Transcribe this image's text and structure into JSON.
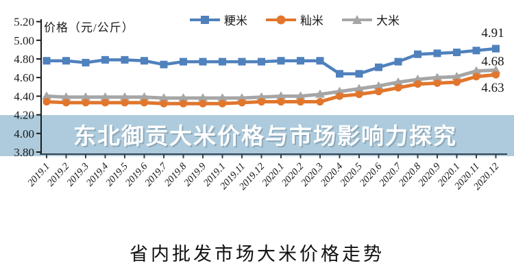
{
  "banner": {
    "title": "东北御贡大米价格与市场影响力探究",
    "bg_color": "#adcbdc",
    "text_color": "#ffffff"
  },
  "footer": {
    "title": "省内批发市场大米价格走势"
  },
  "axis_title": "价格（元/公斤）",
  "legend": [
    {
      "label": "粳米",
      "color": "#4f81bd",
      "marker": "square"
    },
    {
      "label": "籼米",
      "color": "#e1762c",
      "marker": "circle"
    },
    {
      "label": "大米",
      "color": "#a6a6a6",
      "marker": "triangle"
    }
  ],
  "chart_data": {
    "type": "line",
    "title": "省内批发市场大米价格走势",
    "ylabel": "价格（元/公斤）",
    "ylim": [
      3.8,
      5.2
    ],
    "y_ticks": [
      "5.20",
      "5.00",
      "4.80",
      "4.60",
      "4.40",
      "4.20",
      "4.00",
      "3.80"
    ],
    "grid": false,
    "legend_position": "top",
    "x": [
      "2019.1",
      "2019.2",
      "2019.3",
      "2019.4",
      "2019.5",
      "2019.6",
      "2019.7",
      "2019.8",
      "2019.9",
      "2019.1",
      "2019.11",
      "2019.12",
      "2020.1",
      "2020.2",
      "2020.3",
      "2020.4",
      "2020.5",
      "2020.6",
      "2020.7",
      "2020.8",
      "2020.9",
      "2020.1",
      "2020.11",
      "2020.12"
    ],
    "series": [
      {
        "name": "粳米",
        "color": "#4f81bd",
        "marker": "square",
        "values": [
          4.78,
          4.78,
          4.76,
          4.79,
          4.79,
          4.78,
          4.74,
          4.77,
          4.77,
          4.77,
          4.77,
          4.77,
          4.78,
          4.78,
          4.78,
          4.64,
          4.64,
          4.71,
          4.77,
          4.85,
          4.86,
          4.87,
          4.89,
          4.91
        ]
      },
      {
        "name": "籼米",
        "color": "#e1762c",
        "marker": "circle",
        "values": [
          4.34,
          4.33,
          4.33,
          4.33,
          4.33,
          4.33,
          4.32,
          4.32,
          4.32,
          4.32,
          4.33,
          4.34,
          4.34,
          4.34,
          4.34,
          4.4,
          4.42,
          4.45,
          4.49,
          4.53,
          4.54,
          4.55,
          4.61,
          4.63
        ]
      },
      {
        "name": "大米",
        "color": "#a6a6a6",
        "marker": "triangle",
        "values": [
          4.4,
          4.39,
          4.39,
          4.39,
          4.39,
          4.39,
          4.38,
          4.38,
          4.38,
          4.38,
          4.38,
          4.39,
          4.4,
          4.4,
          4.42,
          4.45,
          4.48,
          4.51,
          4.55,
          4.58,
          4.6,
          4.61,
          4.67,
          4.68
        ]
      }
    ],
    "end_labels": [
      {
        "series": "粳米",
        "value": "4.91"
      },
      {
        "series": "大米",
        "value": "4.68"
      },
      {
        "series": "籼米",
        "value": "4.63"
      }
    ]
  }
}
